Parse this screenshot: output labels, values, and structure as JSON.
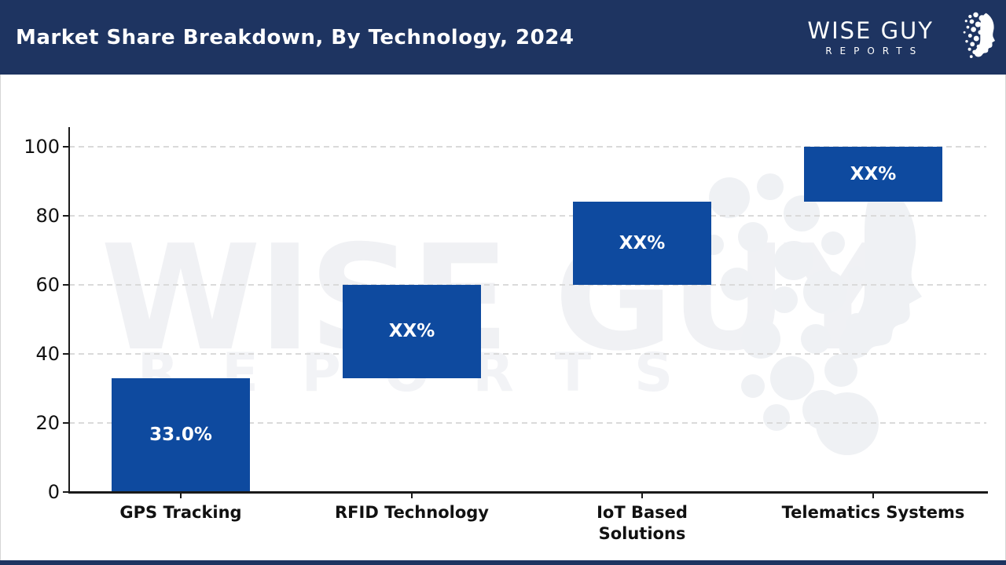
{
  "header": {
    "title": "Market Share Breakdown, By Technology, 2024",
    "bg_color": "#1e3461",
    "logo": {
      "line1": "WISE GUY",
      "line2": "REPORTS"
    }
  },
  "watermark": {
    "line1": "WISE GUY",
    "line2": "REPORTS"
  },
  "footer": {
    "bg_color": "#1e3461"
  },
  "chart_data": {
    "type": "bar",
    "subtype": "waterfall-floating-bars",
    "title": "Market Share Breakdown, By Technology, 2024",
    "categories": [
      "GPS Tracking",
      "RFID Technology",
      "IoT Based\nSolutions",
      "Telematics Systems"
    ],
    "series": [
      {
        "name": "Market Share %",
        "segments": [
          [
            0,
            33
          ],
          [
            33,
            60
          ],
          [
            60,
            84
          ],
          [
            84,
            100
          ]
        ]
      }
    ],
    "bar_labels": [
      "33.0%",
      "XX%",
      "XX%",
      "XX%"
    ],
    "yticks": [
      0,
      20,
      40,
      60,
      80,
      100
    ],
    "ylim": [
      0,
      106
    ],
    "xlabel": "",
    "ylabel": "",
    "grid": "horizontal-dashed",
    "legend": "none",
    "bar_color": "#0e4a9f",
    "bar_label_color": "#ffffff",
    "grid_color": "#dadada",
    "axis_color": "#1a1a1a"
  }
}
